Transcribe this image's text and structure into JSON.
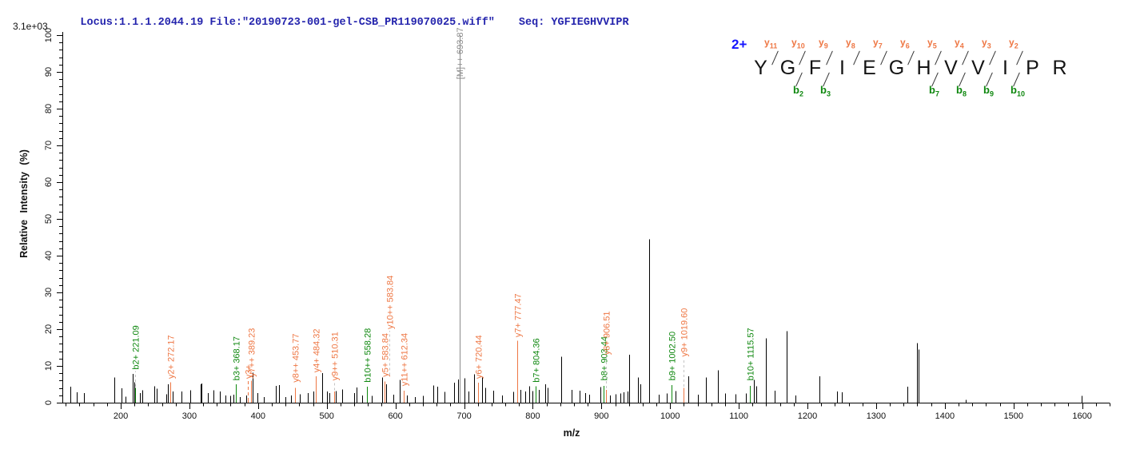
{
  "header": {
    "locus_file": "Locus:1.1.1.2044.19 File:\"20190723-001-gel-CSB_PR119070025.wiff\"",
    "seq_text": "Seq: YGFIEGHVVIPR"
  },
  "colors": {
    "header_text": "#2424ad",
    "y_ion": "#ee7744",
    "b_ion": "#0e870e",
    "charge": "#1515ff",
    "peak": "#000000",
    "precursor": "#8a8a8a",
    "leader": "#c4c4c4",
    "axis": "#000000"
  },
  "sequence_panel": {
    "charge_label": "2+",
    "residues": [
      "Y",
      "G",
      "F",
      "I",
      "E",
      "G",
      "H",
      "V",
      "V",
      "I",
      "P",
      "R"
    ],
    "gaps": [
      {
        "y": "y11"
      },
      {
        "y": "y10",
        "b": "b2"
      },
      {
        "y": "y9",
        "b": "b3"
      },
      {
        "y": "y8"
      },
      {
        "y": "y7"
      },
      {
        "y": "y6"
      },
      {
        "y": "y5",
        "b": "b7"
      },
      {
        "y": "y4",
        "b": "b8"
      },
      {
        "y": "y3",
        "b": "b9"
      },
      {
        "y": "y2",
        "b": "b10"
      },
      {}
    ]
  },
  "chart_data": {
    "type": "bar",
    "subtype": "centroided-ms2-spectrum",
    "title": "",
    "xlabel": "m/z",
    "ylabel": "Relative Intensity (%)",
    "intensity_scale_label": "3.1e+03",
    "xlim": [
      115,
      1640
    ],
    "ylim": [
      0,
      100
    ],
    "x_major_ticks": [
      200,
      300,
      400,
      500,
      600,
      700,
      800,
      900,
      1000,
      1100,
      1200,
      1300,
      1400,
      1500,
      1600
    ],
    "x_minor_step": 20,
    "y_major_ticks": [
      0,
      10,
      20,
      30,
      40,
      50,
      60,
      70,
      80,
      90,
      100
    ],
    "y_minor_step": 2,
    "grid": false,
    "precursor": {
      "text": "[M]++ 693.87",
      "mz": 693.87,
      "intensity_pct": 100,
      "label_base_pct": 88
    },
    "annotated_peaks": [
      {
        "ion": "b2+",
        "text": "b2+ 221.09",
        "mz": 221.09,
        "pct": 4.0,
        "series": "b",
        "base": 9.0,
        "leader": true
      },
      {
        "ion": "y2+",
        "text": "y2+ 272.17",
        "mz": 272.17,
        "pct": 5.5,
        "series": "y",
        "base": 6.5
      },
      {
        "ion": "b3+",
        "text": "b3+ 368.17",
        "mz": 368.17,
        "pct": 5.0,
        "series": "b",
        "base": 6.0
      },
      {
        "ion": "y3+",
        "text": "y3+",
        "mz": 385.3,
        "pct": 0.6,
        "series": "y",
        "base": 6.5,
        "dash": true
      },
      {
        "ion": "y7++",
        "text": "y7++ 389.23",
        "mz": 389.23,
        "pct": 6.0,
        "series": "y",
        "base": 7.0
      },
      {
        "ion": "y8++",
        "text": "y8++ 453.77",
        "mz": 453.77,
        "pct": 4.0,
        "series": "y",
        "base": 5.5
      },
      {
        "ion": "y4+",
        "text": "y4+ 484.32",
        "mz": 484.32,
        "pct": 7.2,
        "series": "y",
        "base": 8.2
      },
      {
        "ion": "y9++",
        "text": "y9++ 510.31",
        "mz": 510.31,
        "pct": 3.0,
        "series": "y",
        "base": 6.0,
        "leader": true
      },
      {
        "ion": "b10++",
        "text": "b10++ 558.28",
        "mz": 558.28,
        "pct": 4.3,
        "series": "b",
        "base": 5.5
      },
      {
        "ion": "y5+",
        "text": "y5+ 583.84",
        "mz": 583.84,
        "pct": 5.8,
        "series": "y",
        "base": 7.0
      },
      {
        "ion": "y10++",
        "text": "y10++ 583.84",
        "mz": 583.84,
        "pct": 0,
        "series": "y",
        "base": 20.0,
        "leader": true,
        "leader_from": 7.5,
        "dx": 6
      },
      {
        "ion": "y11++",
        "text": "y11++ 612.34",
        "mz": 612.34,
        "pct": 3.3,
        "series": "y",
        "base": 4.5
      },
      {
        "ion": "y6+",
        "text": "y6+ 720.44",
        "mz": 720.44,
        "pct": 5.4,
        "series": "y",
        "base": 6.5
      },
      {
        "ion": "y7+",
        "text": "y7+ 777.47",
        "mz": 777.47,
        "pct": 16.8,
        "series": "y",
        "base": 17.8
      },
      {
        "ion": "b7+",
        "text": "b7+ 804.36",
        "mz": 804.36,
        "pct": 4.5,
        "series": "b",
        "base": 5.5
      },
      {
        "ion": "b8+",
        "text": "b8+ 903.44",
        "mz": 903.44,
        "pct": 4.6,
        "series": "b",
        "base": 6.0
      },
      {
        "ion": "y8+",
        "text": "y8+ 906.51",
        "mz": 906.51,
        "pct": 3.5,
        "series": "y",
        "base": 13.0,
        "leader": true
      },
      {
        "ion": "b9+",
        "text": "b9+ 1002.50",
        "mz": 1002.5,
        "pct": 4.8,
        "series": "b",
        "base": 6.0
      },
      {
        "ion": "y9+",
        "text": "y9+ 1019.60",
        "mz": 1019.6,
        "pct": 4.0,
        "series": "y",
        "base": 12.5,
        "leader": true
      },
      {
        "ion": "b10+",
        "text": "b10+ 1115.57",
        "mz": 1115.57,
        "pct": 4.6,
        "series": "b",
        "base": 6.0
      }
    ],
    "peaks": [
      [
        127,
        4.3
      ],
      [
        136,
        2.8
      ],
      [
        146,
        2.6
      ],
      [
        191,
        6.8
      ],
      [
        201,
        3.9
      ],
      [
        207,
        1.6
      ],
      [
        217,
        7.8
      ],
      [
        219.5,
        5.5
      ],
      [
        228,
        2.6
      ],
      [
        231,
        3.4
      ],
      [
        249,
        4.5
      ],
      [
        252,
        3.8
      ],
      [
        266,
        2.3
      ],
      [
        269,
        5.0
      ],
      [
        276,
        3.0
      ],
      [
        288,
        3.0
      ],
      [
        301,
        3.4
      ],
      [
        316,
        5.0
      ],
      [
        318,
        5.2
      ],
      [
        327,
        2.6
      ],
      [
        335,
        3.4
      ],
      [
        344,
        3.0
      ],
      [
        352,
        2.0
      ],
      [
        360,
        1.8
      ],
      [
        364,
        2.2
      ],
      [
        374,
        1.5
      ],
      [
        383,
        2.0
      ],
      [
        392,
        8.2
      ],
      [
        399,
        2.6
      ],
      [
        408,
        1.5
      ],
      [
        426,
        4.6
      ],
      [
        430,
        4.8
      ],
      [
        440,
        1.5
      ],
      [
        448,
        2.0
      ],
      [
        461,
        2.3
      ],
      [
        472,
        2.6
      ],
      [
        481,
        3.0
      ],
      [
        493,
        8.0
      ],
      [
        500,
        3.0
      ],
      [
        504,
        2.6
      ],
      [
        513,
        3.2
      ],
      [
        522,
        3.6
      ],
      [
        540,
        2.6
      ],
      [
        543,
        4.1
      ],
      [
        551,
        2.0
      ],
      [
        566,
        1.8
      ],
      [
        581,
        6.9
      ],
      [
        586,
        5.0
      ],
      [
        597,
        2.2
      ],
      [
        606,
        6.2
      ],
      [
        617,
        2.0
      ],
      [
        628,
        1.5
      ],
      [
        640,
        1.8
      ],
      [
        655,
        4.7
      ],
      [
        661,
        4.4
      ],
      [
        672,
        2.9
      ],
      [
        685,
        5.4
      ],
      [
        691,
        6.3
      ],
      [
        700,
        6.6
      ],
      [
        706,
        3.0
      ],
      [
        714,
        7.7
      ],
      [
        726,
        6.9
      ],
      [
        731,
        4.0
      ],
      [
        743,
        3.3
      ],
      [
        755,
        2.0
      ],
      [
        771,
        2.9
      ],
      [
        782,
        3.5
      ],
      [
        789,
        3.0
      ],
      [
        795,
        4.5
      ],
      [
        800,
        3.2
      ],
      [
        809,
        3.5
      ],
      [
        818,
        5.0
      ],
      [
        822,
        4.0
      ],
      [
        841,
        12.5
      ],
      [
        856,
        3.5
      ],
      [
        868,
        3.3
      ],
      [
        876,
        2.6
      ],
      [
        882,
        2.2
      ],
      [
        898,
        4.2
      ],
      [
        912,
        2.0
      ],
      [
        920,
        2.3
      ],
      [
        927,
        2.5
      ],
      [
        932,
        2.8
      ],
      [
        938,
        3.0
      ],
      [
        940,
        13.0
      ],
      [
        953,
        6.9
      ],
      [
        957,
        5.0
      ],
      [
        970,
        44.5
      ],
      [
        983,
        2.2
      ],
      [
        995,
        2.5
      ],
      [
        1008,
        3.2
      ],
      [
        1027,
        7.2
      ],
      [
        1040,
        2.2
      ],
      [
        1052,
        6.9
      ],
      [
        1069,
        8.8
      ],
      [
        1080,
        2.5
      ],
      [
        1095,
        2.3
      ],
      [
        1110,
        2.5
      ],
      [
        1122,
        6.2
      ],
      [
        1126,
        4.5
      ],
      [
        1140,
        17.5
      ],
      [
        1152,
        3.3
      ],
      [
        1170,
        19.5
      ],
      [
        1183,
        2.0
      ],
      [
        1217,
        7.2
      ],
      [
        1243,
        3.0
      ],
      [
        1250,
        2.8
      ],
      [
        1345,
        4.3
      ],
      [
        1360,
        16.2
      ],
      [
        1362,
        14.5
      ],
      [
        1430,
        0.8
      ],
      [
        1599,
        1.8
      ]
    ]
  }
}
